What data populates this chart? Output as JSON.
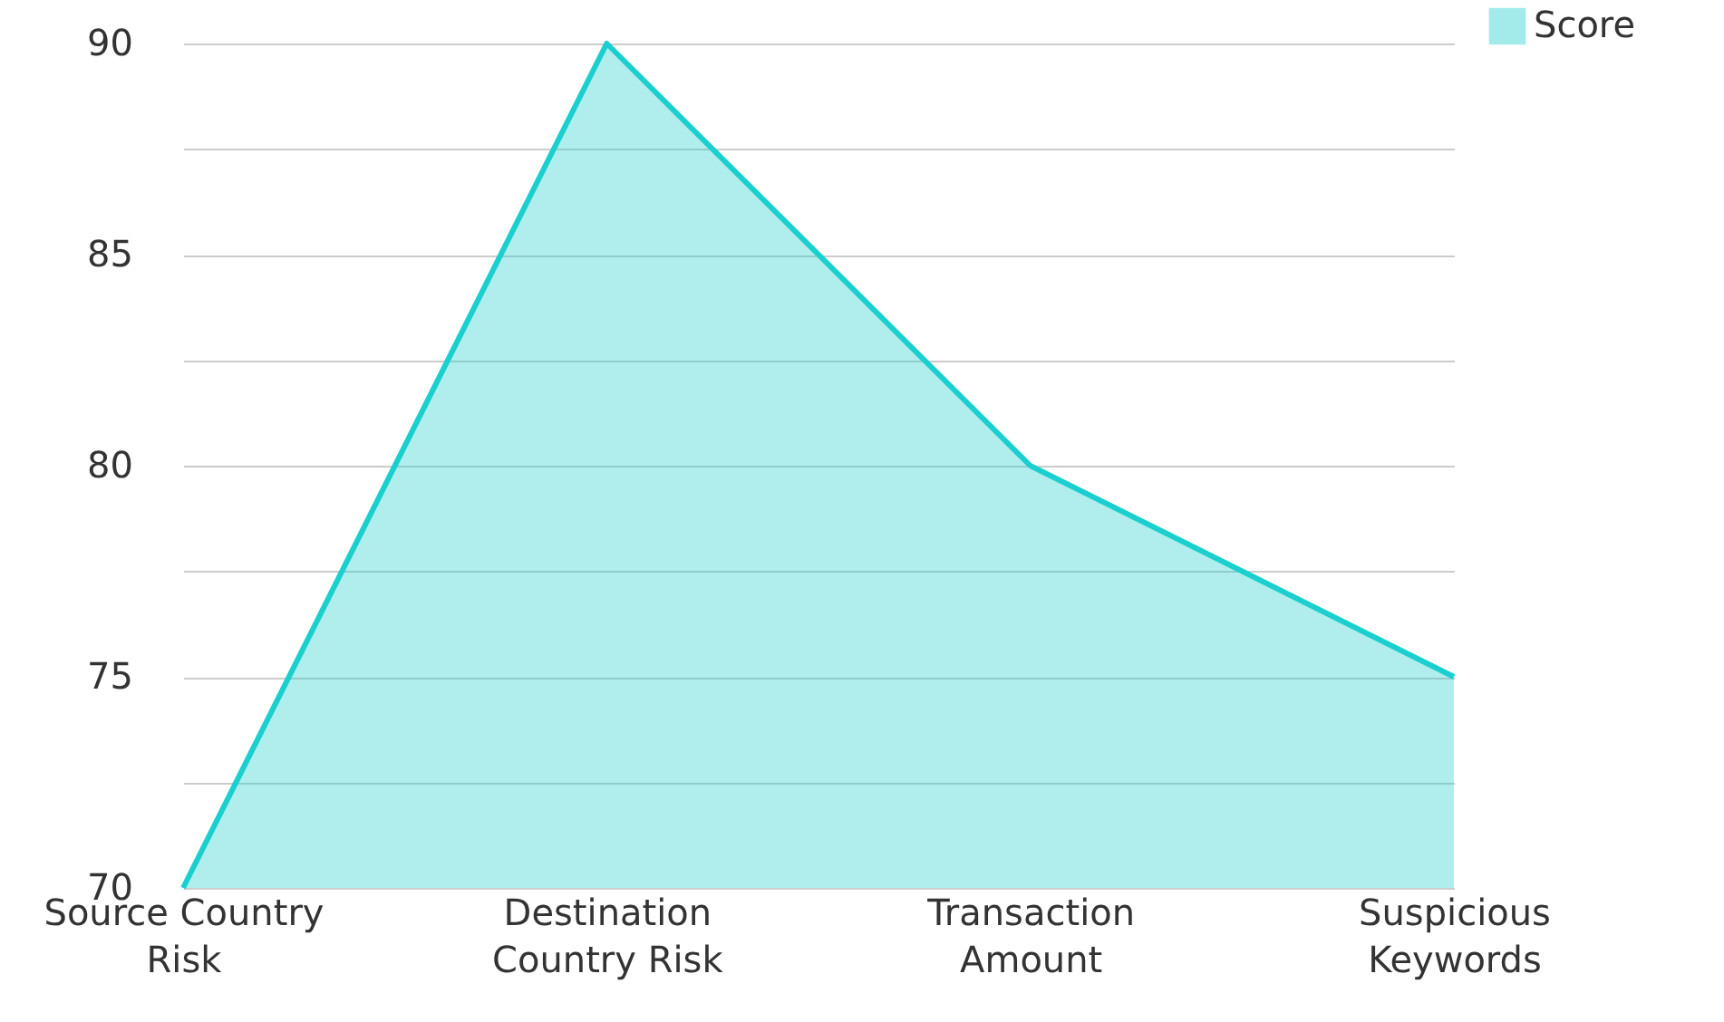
{
  "chart_data": {
    "type": "area",
    "categories": [
      "Source Country Risk",
      "Destination Country Risk",
      "Transaction Amount",
      "Suspicious Keywords"
    ],
    "series": [
      {
        "name": "Score",
        "color": "#1ccfcf",
        "values": [
          70,
          90,
          80,
          75
        ]
      }
    ],
    "ylim": [
      70,
      90
    ],
    "yticks": [
      70,
      {
        "value": 72.5,
        "label": null
      },
      75,
      {
        "value": 77.5,
        "label": null
      },
      80,
      {
        "value": 82.5,
        "label": null
      },
      85,
      {
        "value": 87.5,
        "label": null
      },
      90
    ],
    "grid": "y",
    "legend": "top right"
  }
}
